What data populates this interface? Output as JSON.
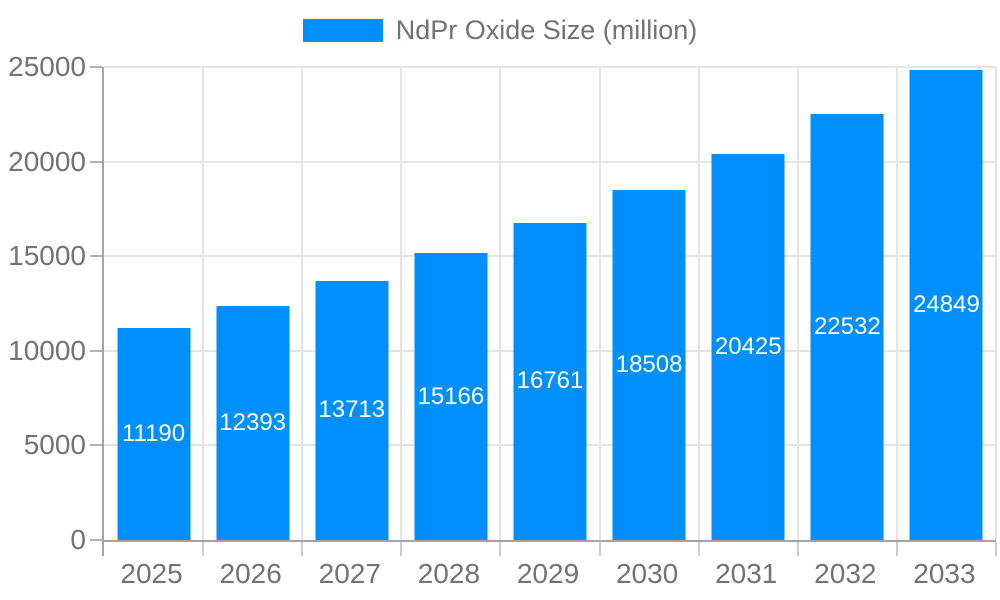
{
  "legend": {
    "label": "NdPr Oxide Size (million)",
    "marker_color": "#008FFB"
  },
  "chart_data": {
    "type": "bar",
    "title": "",
    "categories": [
      "2025",
      "2026",
      "2027",
      "2028",
      "2029",
      "2030",
      "2031",
      "2032",
      "2033"
    ],
    "series": [
      {
        "name": "NdPr Oxide Size (million)",
        "values": [
          11190,
          12393,
          13713,
          15166,
          16761,
          18508,
          20425,
          22532,
          24849
        ]
      }
    ],
    "xlabel": "",
    "ylabel": "",
    "ylim": [
      0,
      25000
    ],
    "yticks": [
      0,
      5000,
      10000,
      15000,
      20000,
      25000
    ],
    "grid": true,
    "legend_position": "top",
    "bar_color": "#008FFB",
    "value_label_color": "#ffffff"
  },
  "colors": {
    "bar": "#008FFB",
    "gridline": "#e4e4e4",
    "axis": "#a3a3a3",
    "text": "#737373",
    "value_label": "#ffffff",
    "background": "#ffffff"
  }
}
